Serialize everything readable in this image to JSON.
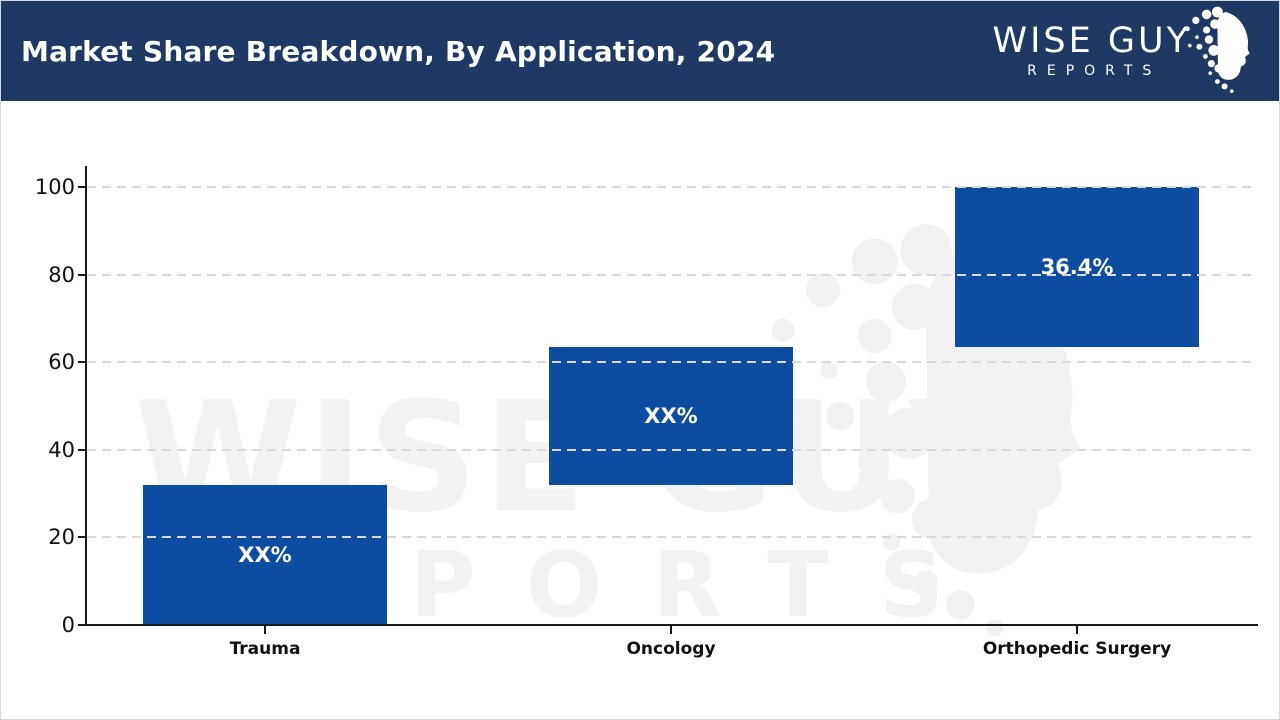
{
  "header": {
    "title": "Market Share Breakdown, By Application, 2024",
    "bg_color": "#1f3864",
    "title_color": "#ffffff",
    "logo": {
      "line1": "WISE GUY",
      "line2": "REPORTS",
      "head_icon": "dotted-head-silhouette"
    }
  },
  "watermark": {
    "line1": "WISE GUY",
    "line2": "REPORTS",
    "color": "#f2f2f3",
    "head_icon": "dotted-head-silhouette"
  },
  "chart_data": {
    "type": "bar",
    "subtype": "floating stacked percentage breakdown (waterfall-style segments)",
    "title": "Market Share Breakdown, By Application, 2024",
    "categories": [
      "Trauma",
      "Oncology",
      "Orthopedic Surgery"
    ],
    "series": [
      {
        "name": "Market share (%)",
        "segments": [
          {
            "category": "Trauma",
            "from": 0,
            "to": 32,
            "value_label": "XX%"
          },
          {
            "category": "Oncology",
            "from": 32,
            "to": 63.6,
            "value_label": "XX%"
          },
          {
            "category": "Orthopedic Surgery",
            "from": 63.6,
            "to": 100,
            "value_label": "36.4%"
          }
        ]
      }
    ],
    "xlabel": "",
    "ylabel": "",
    "ylim": [
      0,
      105
    ],
    "yticks": [
      0,
      20,
      40,
      60,
      80,
      100
    ],
    "grid": "horizontal dashed gridlines drawn over bars",
    "legend": "none",
    "bar_color": "#0c4da2",
    "bar_label_color": "#ffffff",
    "gridline_color": "#d9d9d9",
    "axis_color": "#1a1a1a",
    "tick_label_color": "#111111"
  }
}
